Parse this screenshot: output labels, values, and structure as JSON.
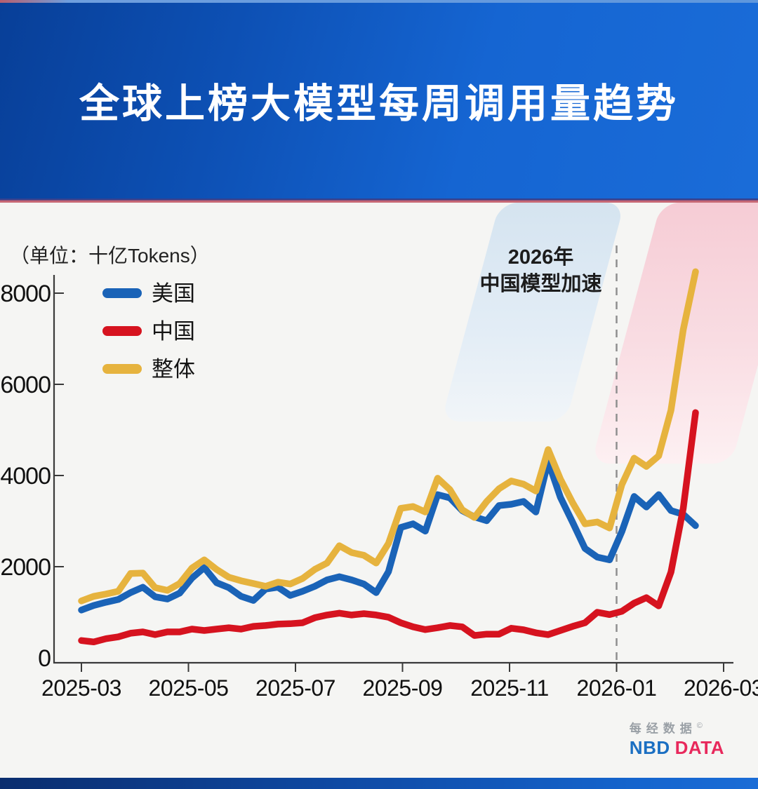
{
  "header": {
    "title": "全球上榜大模型每周调用量趋势"
  },
  "chart": {
    "unit_label": "（单位：十亿Tokens）",
    "annotation": {
      "line1": "2026年",
      "line2": "中国模型加速"
    },
    "axis_color": "#3a3a3a",
    "dashed_marker_color": "#8f8f8f",
    "background": "#f5f5f3"
  },
  "chart_data": {
    "type": "line",
    "title": "全球上榜大模型每周调用量趋势",
    "unit": "十亿Tokens",
    "x_unit": "week",
    "x_tick_labels": [
      "2025-03",
      "2025-05",
      "2025-07",
      "2025-09",
      "2025-11",
      "2026-01",
      "2026-03"
    ],
    "y_ticks": [
      0,
      2000,
      4000,
      6000,
      8000
    ],
    "ylim": [
      0,
      8600
    ],
    "grid": false,
    "legend_position": "upper-left",
    "dashed_marker_at": "2026-01",
    "series": [
      {
        "name": "美国",
        "color": "#1a63b7",
        "values": [
          1050,
          1150,
          1220,
          1280,
          1430,
          1550,
          1340,
          1290,
          1420,
          1750,
          1980,
          1650,
          1540,
          1350,
          1260,
          1510,
          1550,
          1370,
          1460,
          1570,
          1710,
          1780,
          1710,
          1620,
          1430,
          1890,
          2860,
          2940,
          2780,
          3580,
          3510,
          3230,
          3090,
          3010,
          3340,
          3370,
          3430,
          3200,
          4310,
          3520,
          2970,
          2400,
          2210,
          2150,
          2770,
          3540,
          3310,
          3580,
          3230,
          3150,
          2900
        ]
      },
      {
        "name": "中国",
        "color": "#d6131f",
        "values": [
          380,
          350,
          420,
          460,
          540,
          570,
          510,
          570,
          570,
          630,
          600,
          630,
          660,
          630,
          690,
          710,
          740,
          750,
          770,
          880,
          940,
          980,
          940,
          970,
          940,
          890,
          770,
          680,
          620,
          660,
          710,
          680,
          490,
          520,
          520,
          650,
          615,
          550,
          510,
          600,
          690,
          770,
          1000,
          950,
          1020,
          1200,
          1320,
          1140,
          1880,
          3280,
          5380
        ]
      },
      {
        "name": "整体",
        "color": "#e6b33e",
        "values": [
          1250,
          1350,
          1400,
          1460,
          1850,
          1860,
          1540,
          1480,
          1630,
          1970,
          2150,
          1940,
          1770,
          1690,
          1630,
          1570,
          1660,
          1620,
          1740,
          1940,
          2080,
          2460,
          2310,
          2250,
          2080,
          2510,
          3280,
          3320,
          3200,
          3940,
          3690,
          3250,
          3080,
          3430,
          3710,
          3880,
          3810,
          3660,
          4570,
          3920,
          3400,
          2940,
          2980,
          2850,
          3800,
          4380,
          4200,
          4430,
          5430,
          7200,
          8470
        ]
      }
    ]
  },
  "footer": {
    "brand_cn": "每经数据",
    "copyright": "©",
    "brand_nbd": "NBD",
    "brand_data": "DATA"
  }
}
